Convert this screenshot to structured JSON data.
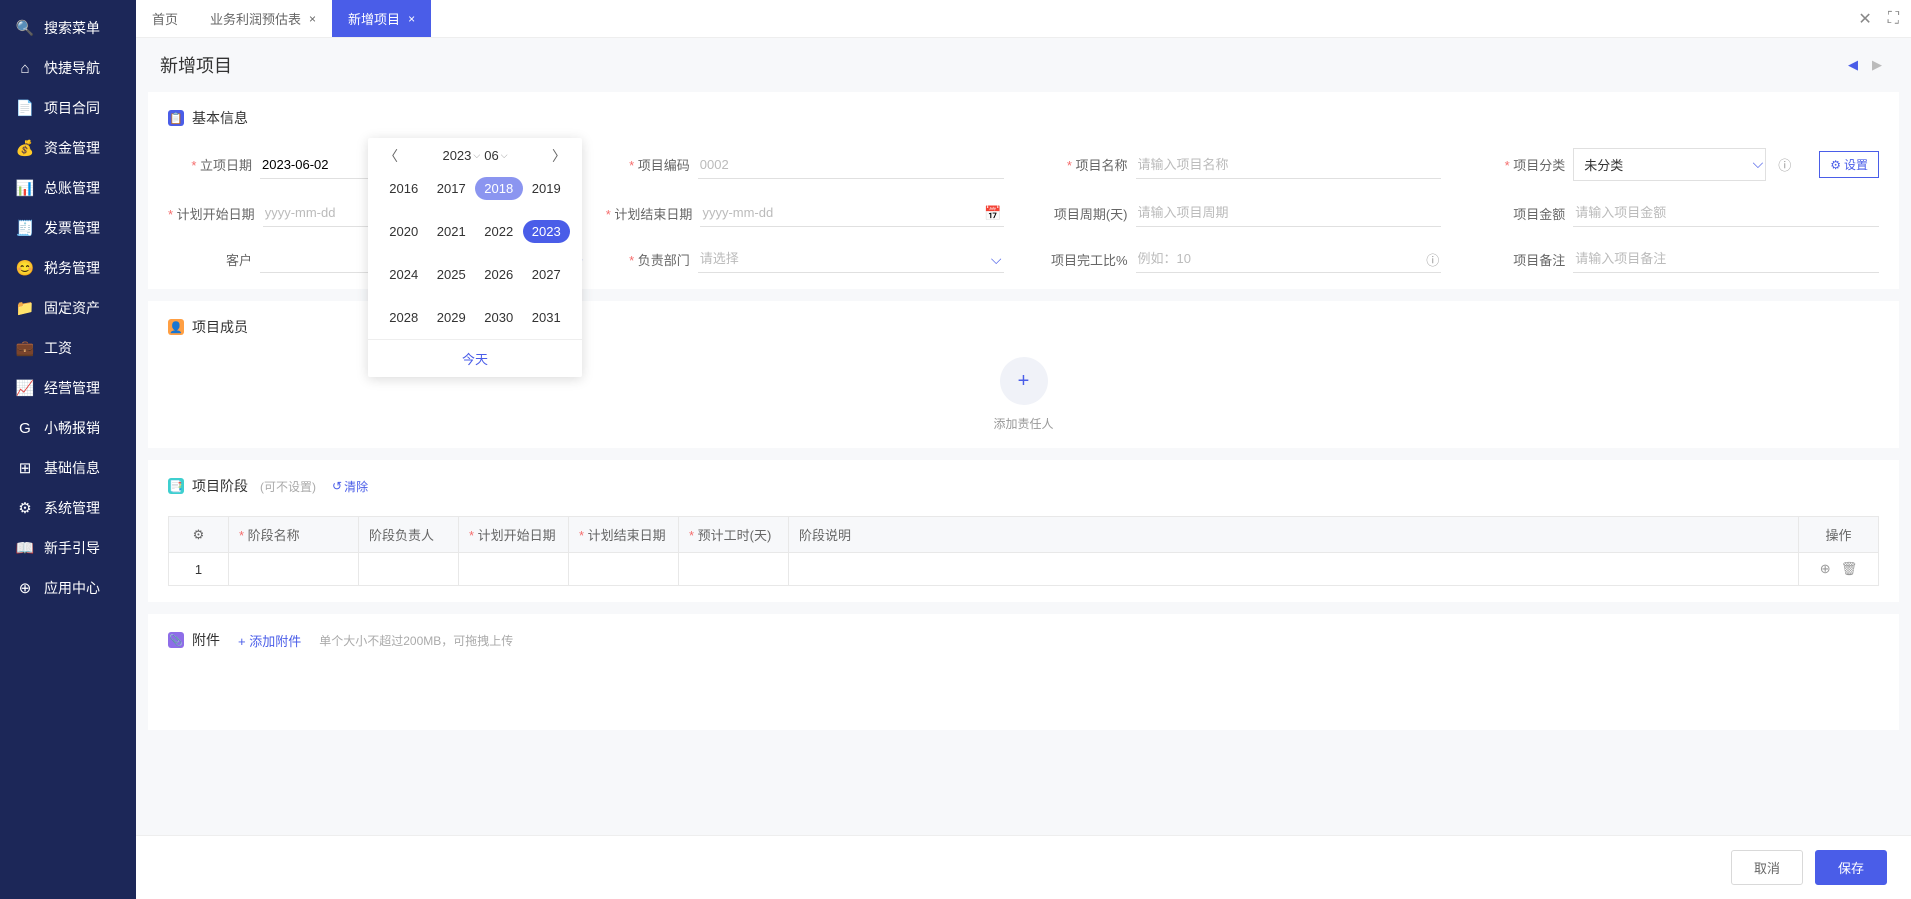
{
  "sidebar": {
    "items": [
      {
        "icon": "🔍",
        "label": "搜索菜单"
      },
      {
        "icon": "⌂",
        "label": "快捷导航"
      },
      {
        "icon": "📄",
        "label": "项目合同"
      },
      {
        "icon": "💰",
        "label": "资金管理"
      },
      {
        "icon": "📊",
        "label": "总账管理"
      },
      {
        "icon": "🧾",
        "label": "发票管理"
      },
      {
        "icon": "😊",
        "label": "税务管理"
      },
      {
        "icon": "📁",
        "label": "固定资产"
      },
      {
        "icon": "💼",
        "label": "工资"
      },
      {
        "icon": "📈",
        "label": "经营管理"
      },
      {
        "icon": "G",
        "label": "小畅报销"
      },
      {
        "icon": "⊞",
        "label": "基础信息"
      },
      {
        "icon": "⚙",
        "label": "系统管理"
      },
      {
        "icon": "📖",
        "label": "新手引导"
      },
      {
        "icon": "⊕",
        "label": "应用中心"
      }
    ]
  },
  "tabs": {
    "items": [
      {
        "label": "首页",
        "closable": false,
        "active": false
      },
      {
        "label": "业务利润预估表",
        "closable": true,
        "active": false
      },
      {
        "label": "新增项目",
        "closable": true,
        "active": true
      }
    ]
  },
  "page": {
    "title": "新增项目"
  },
  "sections": {
    "basic": "基本信息",
    "members": "项目成员",
    "stages": "项目阶段",
    "stages_hint": "(可不设置)",
    "clear": "清除",
    "attach": "附件",
    "attach_add": "+ 添加附件",
    "attach_hint": "单个大小不超过200MB，可拖拽上传"
  },
  "form": {
    "establish_date": {
      "label": "立项日期",
      "value": "2023-06-02"
    },
    "code": {
      "label": "项目编码",
      "placeholder": "0002"
    },
    "name": {
      "label": "项目名称",
      "placeholder": "请输入项目名称"
    },
    "category": {
      "label": "项目分类",
      "value": "未分类"
    },
    "settings_btn": "设置",
    "plan_start": {
      "label": "计划开始日期",
      "placeholder": "yyyy-mm-dd"
    },
    "plan_end": {
      "label": "计划结束日期",
      "placeholder": "yyyy-mm-dd"
    },
    "cycle": {
      "label": "项目周期(天)",
      "placeholder": "请输入项目周期"
    },
    "amount": {
      "label": "项目金额",
      "placeholder": "请输入项目金额"
    },
    "customer": {
      "label": "客户",
      "placeholder": ""
    },
    "dept": {
      "label": "负责部门",
      "placeholder": "请选择"
    },
    "progress": {
      "label": "项目完工比%",
      "placeholder": "例如：10"
    },
    "remark": {
      "label": "项目备注",
      "placeholder": "请输入项目备注"
    }
  },
  "members": {
    "add_label": "添加责任人"
  },
  "stage_table": {
    "cols": [
      "",
      "阶段名称",
      "阶段负责人",
      "计划开始日期",
      "计划结束日期",
      "预计工时(天)",
      "阶段说明",
      "操作"
    ],
    "required": [
      false,
      true,
      false,
      true,
      true,
      true,
      false,
      false
    ],
    "row_num": "1"
  },
  "datepicker": {
    "year": "2023",
    "month": "06",
    "years": [
      "2016",
      "2017",
      "2018",
      "2019",
      "2020",
      "2021",
      "2022",
      "2023",
      "2024",
      "2025",
      "2026",
      "2027",
      "2028",
      "2029",
      "2030",
      "2031"
    ],
    "hover": "2018",
    "selected": "2023",
    "today": "今天"
  },
  "footer": {
    "cancel": "取消",
    "save": "保存"
  }
}
